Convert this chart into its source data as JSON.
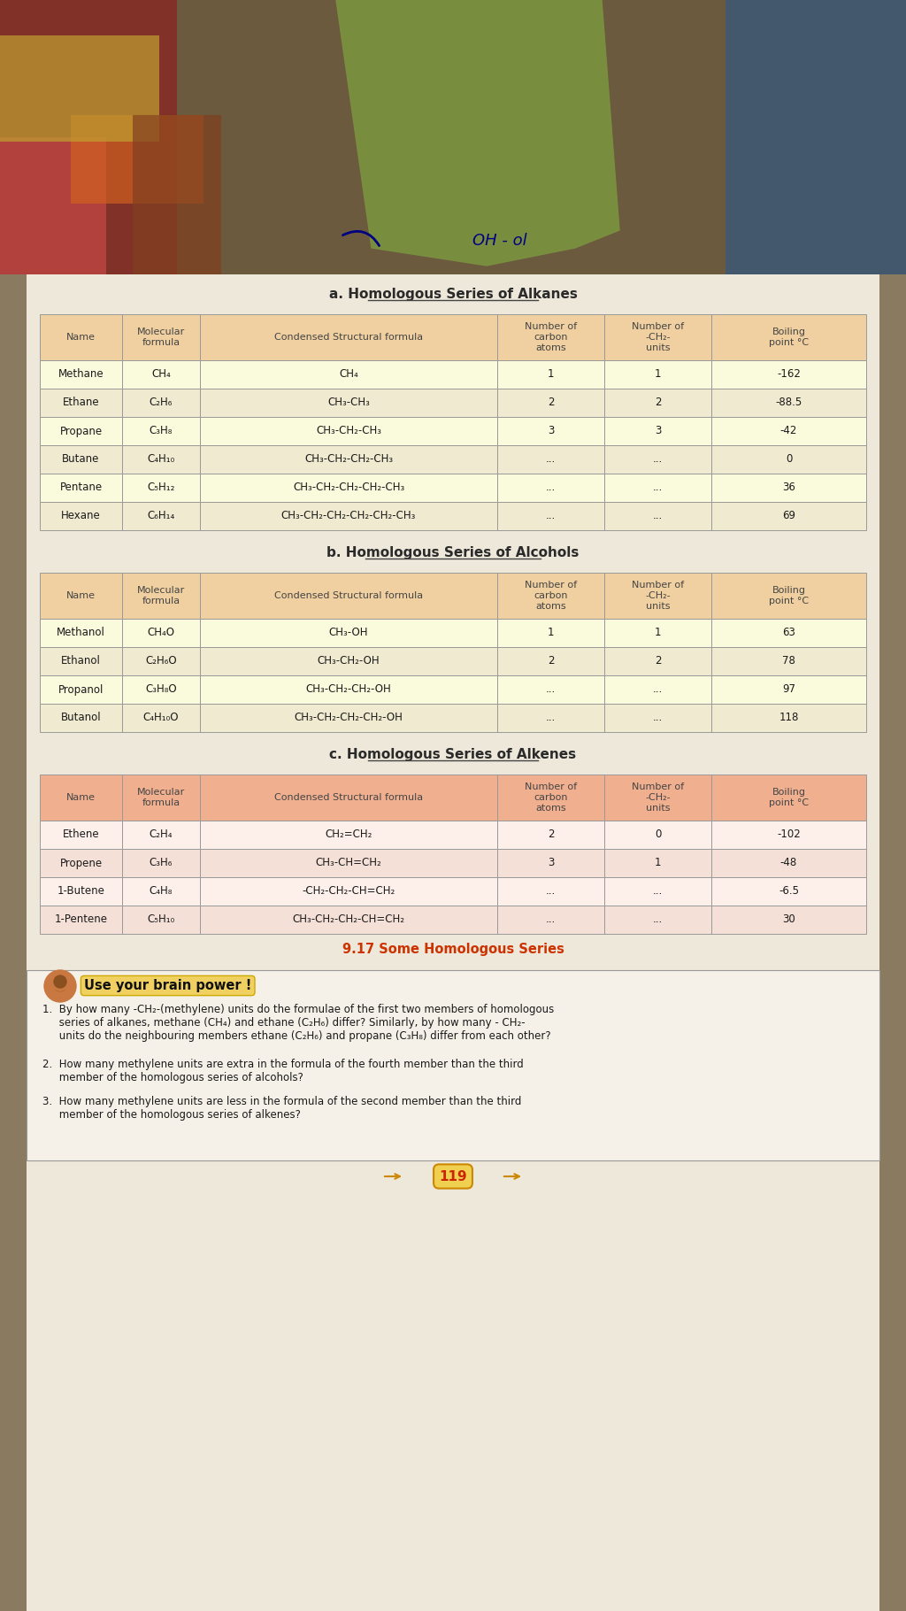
{
  "page_bg": "#8a7a60",
  "book_bg": "#e8e0d0",
  "table_bg_header_ab": "#f0d0a0",
  "table_bg_header_c": "#f0b090",
  "table_bg_row_light": "#fafadc",
  "table_bg_row_alt": "#f0ead0",
  "table_bg_row_light_c": "#fdf0eb",
  "table_bg_row_alt_c": "#f5e0d8",
  "table_border": "#999999",
  "title_color": "#2a2a2a",
  "text_color": "#1a1a1a",
  "header_text_color": "#444444",
  "annotation_color": "#000080",
  "caption_color": "#cc3300",
  "handwritten_text": "OH - ol",
  "section_a_title": "a. Homologous Series of Alkanes",
  "section_b_title": "b. Homologous Series of Alcohols",
  "section_c_title": "c. Homologous Series of Alkenes",
  "table_headers": [
    "Name",
    "Molecular\nformula",
    "Condensed Structural formula",
    "Number of\ncarbon\natoms",
    "Number of\n-CH₂-\nunits",
    "Boiling\npoint °C"
  ],
  "alkanes_rows": [
    [
      "Methane",
      "CH₄",
      "CH₄",
      "1",
      "1",
      "-162"
    ],
    [
      "Ethane",
      "C₂H₆",
      "CH₃-CH₃",
      "2",
      "2",
      "-88.5"
    ],
    [
      "Propane",
      "C₃H₈",
      "CH₃-CH₂-CH₃",
      "3",
      "3",
      "-42"
    ],
    [
      "Butane",
      "C₄H₁₀",
      "CH₃-CH₂-CH₂-CH₃",
      "...",
      "...",
      "0"
    ],
    [
      "Pentane",
      "C₅H₁₂",
      "CH₃-CH₂-CH₂-CH₂-CH₃",
      "...",
      "...",
      "36"
    ],
    [
      "Hexane",
      "C₆H₁₄",
      "CH₃-CH₂-CH₂-CH₂-CH₂-CH₃",
      "...",
      "...",
      "69"
    ]
  ],
  "alcohols_rows": [
    [
      "Methanol",
      "CH₄O",
      "CH₃-OH",
      "1",
      "1",
      "63"
    ],
    [
      "Ethanol",
      "C₂H₆O",
      "CH₃-CH₂-OH",
      "2",
      "2",
      "78"
    ],
    [
      "Propanol",
      "C₃H₈O",
      "CH₃-CH₂-CH₂-OH",
      "...",
      "...",
      "97"
    ],
    [
      "Butanol",
      "C₄H₁₀O",
      "CH₃-CH₂-CH₂-CH₂-OH",
      "...",
      "...",
      "118"
    ]
  ],
  "alkenes_rows": [
    [
      "Ethene",
      "C₂H₄",
      "CH₂=CH₂",
      "2",
      "0",
      "-102"
    ],
    [
      "Propene",
      "C₃H₆",
      "CH₃-CH=CH₂",
      "3",
      "1",
      "-48"
    ],
    [
      "1-Butene",
      "C₄H₈",
      "-CH₂-CH₂-CH=CH₂",
      "...",
      "...",
      "-6.5"
    ],
    [
      "1-Pentene",
      "C₅H₁₀",
      "CH₃-CH₂-CH₂-CH=CH₂",
      "...",
      "...",
      "30"
    ]
  ],
  "caption": "9.17 Some Homologous Series",
  "footer_title": "Use your brain power !",
  "footer_line1": "1.  By how many -CH₂-(methylene) units do the formulae of the first two members of homologous\n     series of alkanes, methane (CH₄) and ethane (C₂H₆) differ? Similarly, by how many - CH₂-\n     units do the neighbouring members ethane (C₂H₆) and propane (C₃H₈) differ from each other?",
  "footer_line2": "2.  How many methylene units are extra in the formula of the fourth member than the third\n     member of the homologous series of alcohols?",
  "footer_line3": "3.  How many methylene units are less in the formula of the second member than the third\n     member of the homologous series of alkenes?",
  "page_number": "119"
}
